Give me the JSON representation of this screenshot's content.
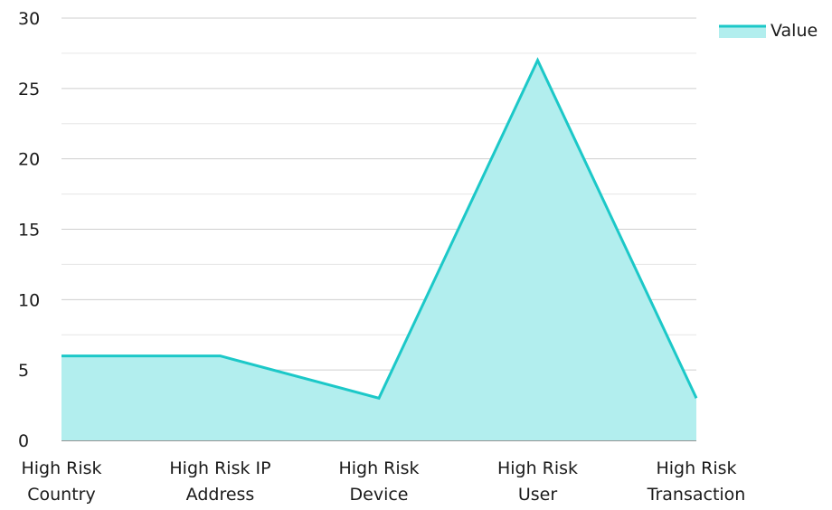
{
  "chart_data": {
    "type": "area",
    "categories": [
      [
        "High Risk",
        "Country"
      ],
      [
        "High Risk IP",
        "Address"
      ],
      [
        "High Risk",
        "Device"
      ],
      [
        "High Risk",
        "User"
      ],
      [
        "High Risk",
        "Transaction"
      ]
    ],
    "series": [
      {
        "name": "Value",
        "values": [
          6,
          6,
          3,
          27,
          3
        ],
        "line_color": "#1cc8c8",
        "fill_color": "#b2eeee"
      }
    ],
    "yticks": [
      0,
      5,
      10,
      15,
      20,
      25,
      30
    ],
    "ylim": [
      0,
      30
    ],
    "grid": true,
    "minor_grid": true,
    "legend": "top-right"
  }
}
